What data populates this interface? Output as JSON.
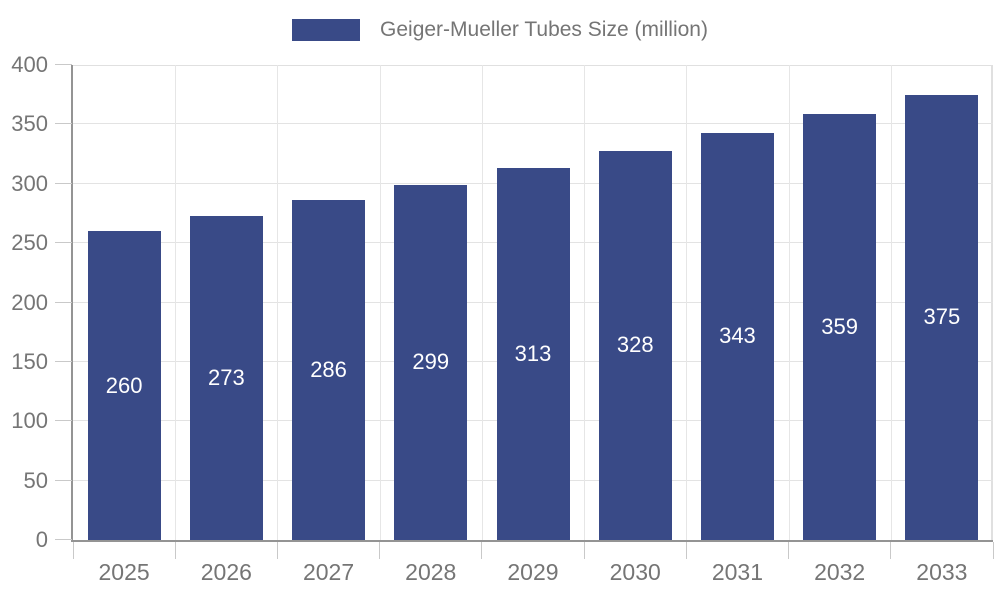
{
  "legend": {
    "label": "Geiger-Mueller Tubes Size (million)"
  },
  "chart_data": {
    "type": "bar",
    "title": "",
    "series_name": "Geiger-Mueller Tubes Size (million)",
    "categories": [
      "2025",
      "2026",
      "2027",
      "2028",
      "2029",
      "2030",
      "2031",
      "2032",
      "2033"
    ],
    "values": [
      260,
      273,
      286,
      299,
      313,
      328,
      343,
      359,
      375
    ],
    "xlabel": "",
    "ylabel": "",
    "ylim": [
      0,
      400
    ],
    "ytick_step": 50,
    "yticks": [
      0,
      50,
      100,
      150,
      200,
      250,
      300,
      350,
      400
    ],
    "grid": true,
    "legend_position": "top-center",
    "value_labels": "inside-center",
    "colors": {
      "bar": "#394A87",
      "value_label": "#FFFFFF",
      "axis_text": "#757575",
      "axis_line": "#949494",
      "tick_line": "#C9C9C9",
      "gridline": "#E3E3E3",
      "plot_border": "#E0E0E0",
      "background": "#FFFFFF"
    }
  }
}
